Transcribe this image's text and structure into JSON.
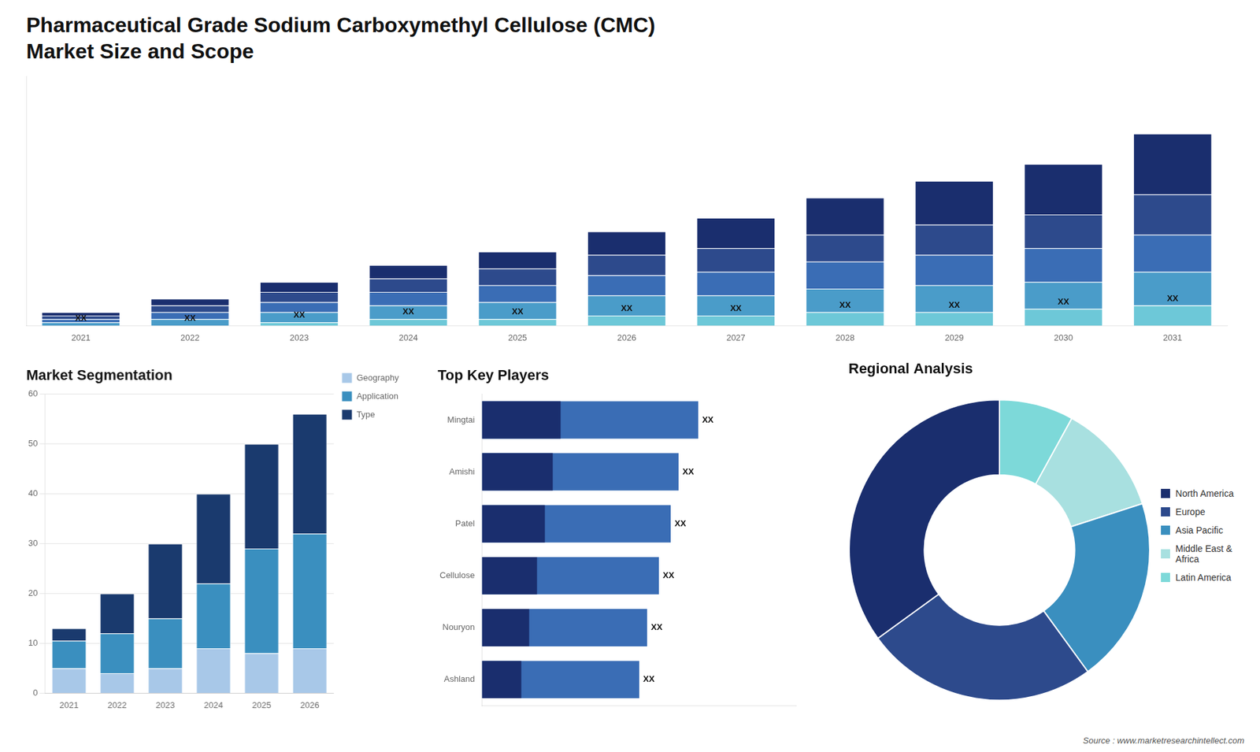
{
  "chart_data": [
    {
      "type": "bar",
      "title": "Pharmaceutical Grade Sodium Carboxymethyl Cellulose (CMC)",
      "subtitle": "Market Size and Scope",
      "annotations": [
        "Source : www.marketresearchintellect.com"
      ],
      "categories": [
        "2021",
        "2022",
        "2023",
        "2024",
        "2025",
        "2026",
        "2027",
        "2028",
        "2029",
        "2030",
        "2031"
      ],
      "stacked": true,
      "series": [
        {
          "color": "#1a2e6e",
          "values": [
            1,
            2,
            3,
            4,
            5,
            7,
            9,
            11,
            13,
            15,
            18
          ]
        },
        {
          "color": "#2d4a8c",
          "values": [
            1,
            2,
            3,
            4,
            5,
            6,
            7,
            8,
            9,
            10,
            12
          ]
        },
        {
          "color": "#3a6db5",
          "values": [
            1,
            2,
            3,
            4,
            5,
            6,
            7,
            8,
            9,
            10,
            11
          ]
        },
        {
          "color": "#4a9cc9",
          "values": [
            1,
            2,
            3,
            4,
            5,
            6,
            6,
            7,
            8,
            8,
            10
          ]
        },
        {
          "color": "#6dc8d8",
          "values": [
            0,
            0,
            1,
            2,
            2,
            3,
            3,
            4,
            4,
            5,
            6
          ],
          "value_labels": [
            "XX",
            "XX",
            "XX",
            "XX",
            "XX",
            "XX",
            "XX",
            "XX",
            "XX",
            "XX",
            "XX"
          ]
        }
      ],
      "ylim": [
        0,
        74.1
      ],
      "tick_labels": "x"
    },
    {
      "type": "bar",
      "title": "Market Segmentation",
      "categories": [
        "2021",
        "2022",
        "2023",
        "2024",
        "2025",
        "2026"
      ],
      "stacked": true,
      "series": [
        {
          "name": "Type",
          "color": "#1a3a6e",
          "values": [
            2.5,
            8,
            15,
            18,
            21,
            24
          ]
        },
        {
          "name": "Application",
          "color": "#3a8fbf",
          "values": [
            5.5,
            8,
            10,
            13,
            21,
            23
          ]
        },
        {
          "name": "Geography",
          "color": "#a8c8e8",
          "values": [
            5,
            4,
            5,
            9,
            8,
            9
          ]
        }
      ],
      "ylim": [
        0,
        60
      ],
      "yticks": [
        0,
        10,
        20,
        30,
        40,
        50,
        60
      ],
      "grid": true,
      "legend": "right"
    },
    {
      "type": "bar",
      "title": "Top Key Players",
      "orientation": "horizontal",
      "categories": [
        "Mingtai",
        "Amishi",
        "Patel",
        "Cellulose",
        "Nouryon",
        "Ashland"
      ],
      "series": [
        {
          "color": "#3a6db5",
          "values": [
            55,
            50,
            48,
            45,
            42,
            40
          ],
          "value_labels": [
            "XX",
            "XX",
            "XX",
            "XX",
            "XX",
            "XX"
          ]
        },
        {
          "color": "#1a2e6e",
          "values": [
            20,
            18,
            16,
            14,
            12,
            10
          ]
        }
      ],
      "xlim": [
        0,
        80
      ],
      "tick_labels": "y"
    },
    {
      "type": "doughnut",
      "title": "Regional Analysis",
      "categories": [
        "Latin America",
        "Middle East &\nAfrica",
        "Asia Pacific",
        "Europe",
        "North America"
      ],
      "values": [
        8,
        12,
        20,
        25,
        35
      ],
      "colors": [
        "#7dd9d9",
        "#a8e0e0",
        "#3a8fbf",
        "#2d4a8c",
        "#1a2e6e"
      ],
      "legend": "right"
    }
  ]
}
